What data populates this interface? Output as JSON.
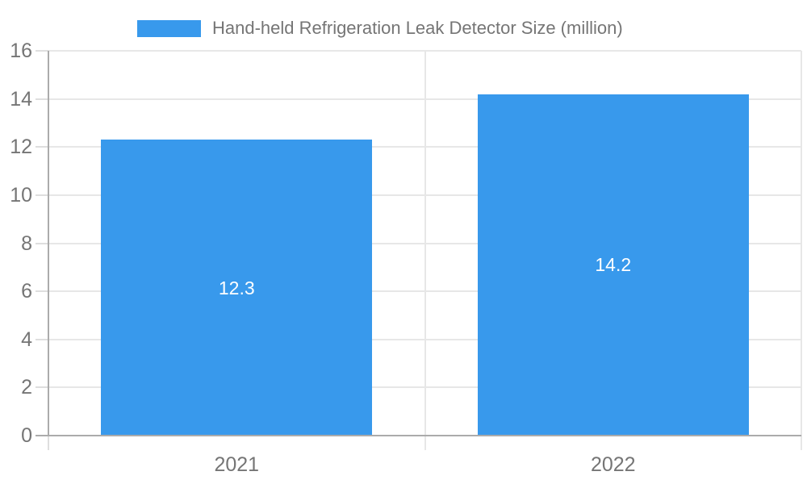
{
  "legend": {
    "label": "Hand-held Refrigeration Leak Detector Size (million)"
  },
  "colors": {
    "bar": "#3899EC",
    "axis_text": "#757575",
    "value_text": "#ffffff",
    "gridline": "#e7e7e7",
    "axis_line": "#ababab",
    "tick": "#dedede"
  },
  "chart_data": {
    "type": "bar",
    "title": "",
    "categories": [
      "2021",
      "2022"
    ],
    "series": [
      {
        "name": "Hand-held Refrigeration Leak Detector Size (million)",
        "values": [
          12.3,
          14.2
        ]
      }
    ],
    "values": [
      12.3,
      14.2
    ],
    "value_labels": [
      "12.3",
      "14.2"
    ],
    "xlabel": "",
    "ylabel": "",
    "ylim": [
      0,
      16
    ],
    "yticks": [
      0,
      2,
      4,
      6,
      8,
      10,
      12,
      14,
      16
    ],
    "grid": true,
    "legend_position": "top"
  }
}
